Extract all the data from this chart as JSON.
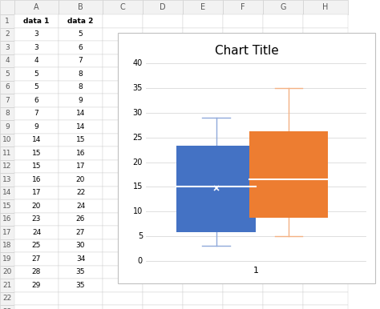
{
  "data1": [
    3,
    3,
    4,
    5,
    5,
    6,
    7,
    9,
    14,
    15,
    15,
    16,
    17,
    20,
    23,
    24,
    25,
    27,
    28,
    29
  ],
  "data2": [
    5,
    6,
    7,
    8,
    8,
    9,
    14,
    14,
    15,
    16,
    17,
    20,
    22,
    24,
    26,
    27,
    30,
    34,
    35,
    35
  ],
  "title": "Chart Title",
  "xtick_label": "1",
  "color1": "#4472C4",
  "color2": "#ED7D31",
  "whisker_color1": "#8FA9DB",
  "whisker_color2": "#F4B183",
  "mean_color1": "#4472C4",
  "mean_color2": "#ED7D31",
  "background_color": "#FFFFFF",
  "chart_bg": "#FFFFFF",
  "grid_color": "#D9D9D9",
  "excel_bg": "#F2F2F2",
  "excel_line": "#D0D0D0",
  "header_bg": "#F2F2F2",
  "header_text": "#595959",
  "title_fontsize": 11,
  "col_headers": [
    "",
    "A",
    "B",
    "C",
    "D",
    "E",
    "F",
    "G",
    "H"
  ],
  "row_data_1": [
    "data 1",
    "data 2"
  ],
  "spreadsheet_data1": [
    3,
    3,
    4,
    5,
    5,
    6,
    7,
    9,
    14,
    15,
    15,
    16,
    17,
    20,
    23,
    24,
    25,
    27,
    28,
    29
  ],
  "spreadsheet_data2": [
    5,
    6,
    7,
    8,
    8,
    9,
    14,
    14,
    15,
    16,
    17,
    20,
    22,
    24,
    26,
    27,
    30,
    34,
    35,
    35
  ],
  "num_rows": 23,
  "ylim": [
    0,
    40
  ],
  "yticks": [
    0,
    5,
    10,
    15,
    20,
    25,
    30,
    35,
    40
  ]
}
